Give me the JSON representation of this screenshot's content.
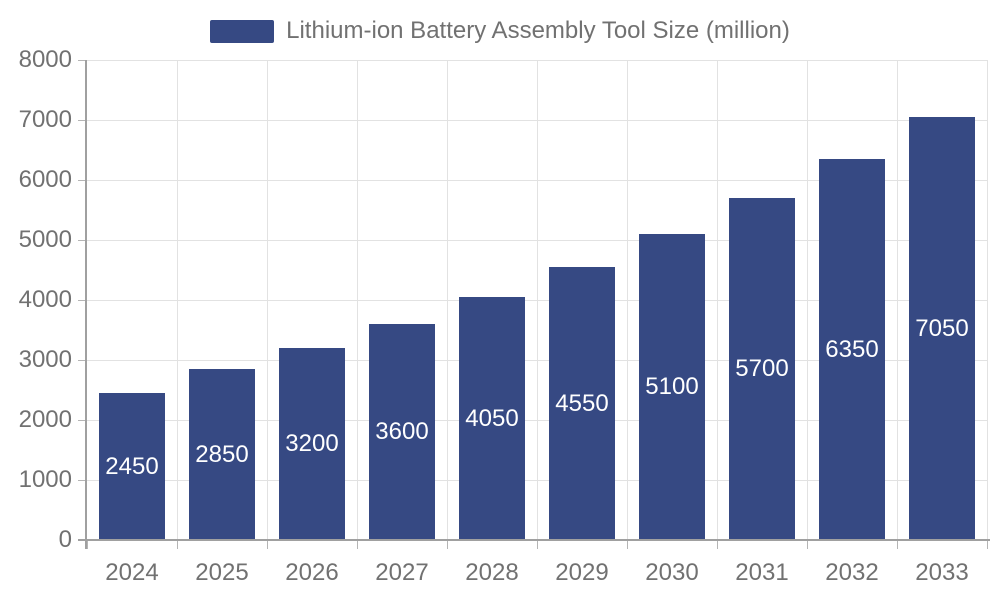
{
  "colors": {
    "bar": "#364983",
    "grid": "#e2e2e2",
    "axis": "#a0a0a0",
    "tick": "#b5b5b5",
    "text": "#717171",
    "value_label": "#ffffff",
    "background": "#ffffff"
  },
  "chart_data": {
    "type": "bar",
    "title": "",
    "series_name": "Lithium-ion Battery Assembly Tool Size (million)",
    "categories": [
      "2024",
      "2025",
      "2026",
      "2027",
      "2028",
      "2029",
      "2030",
      "2031",
      "2032",
      "2033"
    ],
    "values": [
      2450,
      2850,
      3200,
      3600,
      4050,
      4550,
      5100,
      5700,
      6350,
      7050
    ],
    "xlabel": "",
    "ylabel": "",
    "ylim": [
      0,
      8000
    ],
    "ytick_step": 1000,
    "yticks": [
      0,
      1000,
      2000,
      3000,
      4000,
      5000,
      6000,
      7000,
      8000
    ],
    "grid": true,
    "vertical_grid": true,
    "legend_position": "top",
    "value_label_position": "inside-center"
  }
}
